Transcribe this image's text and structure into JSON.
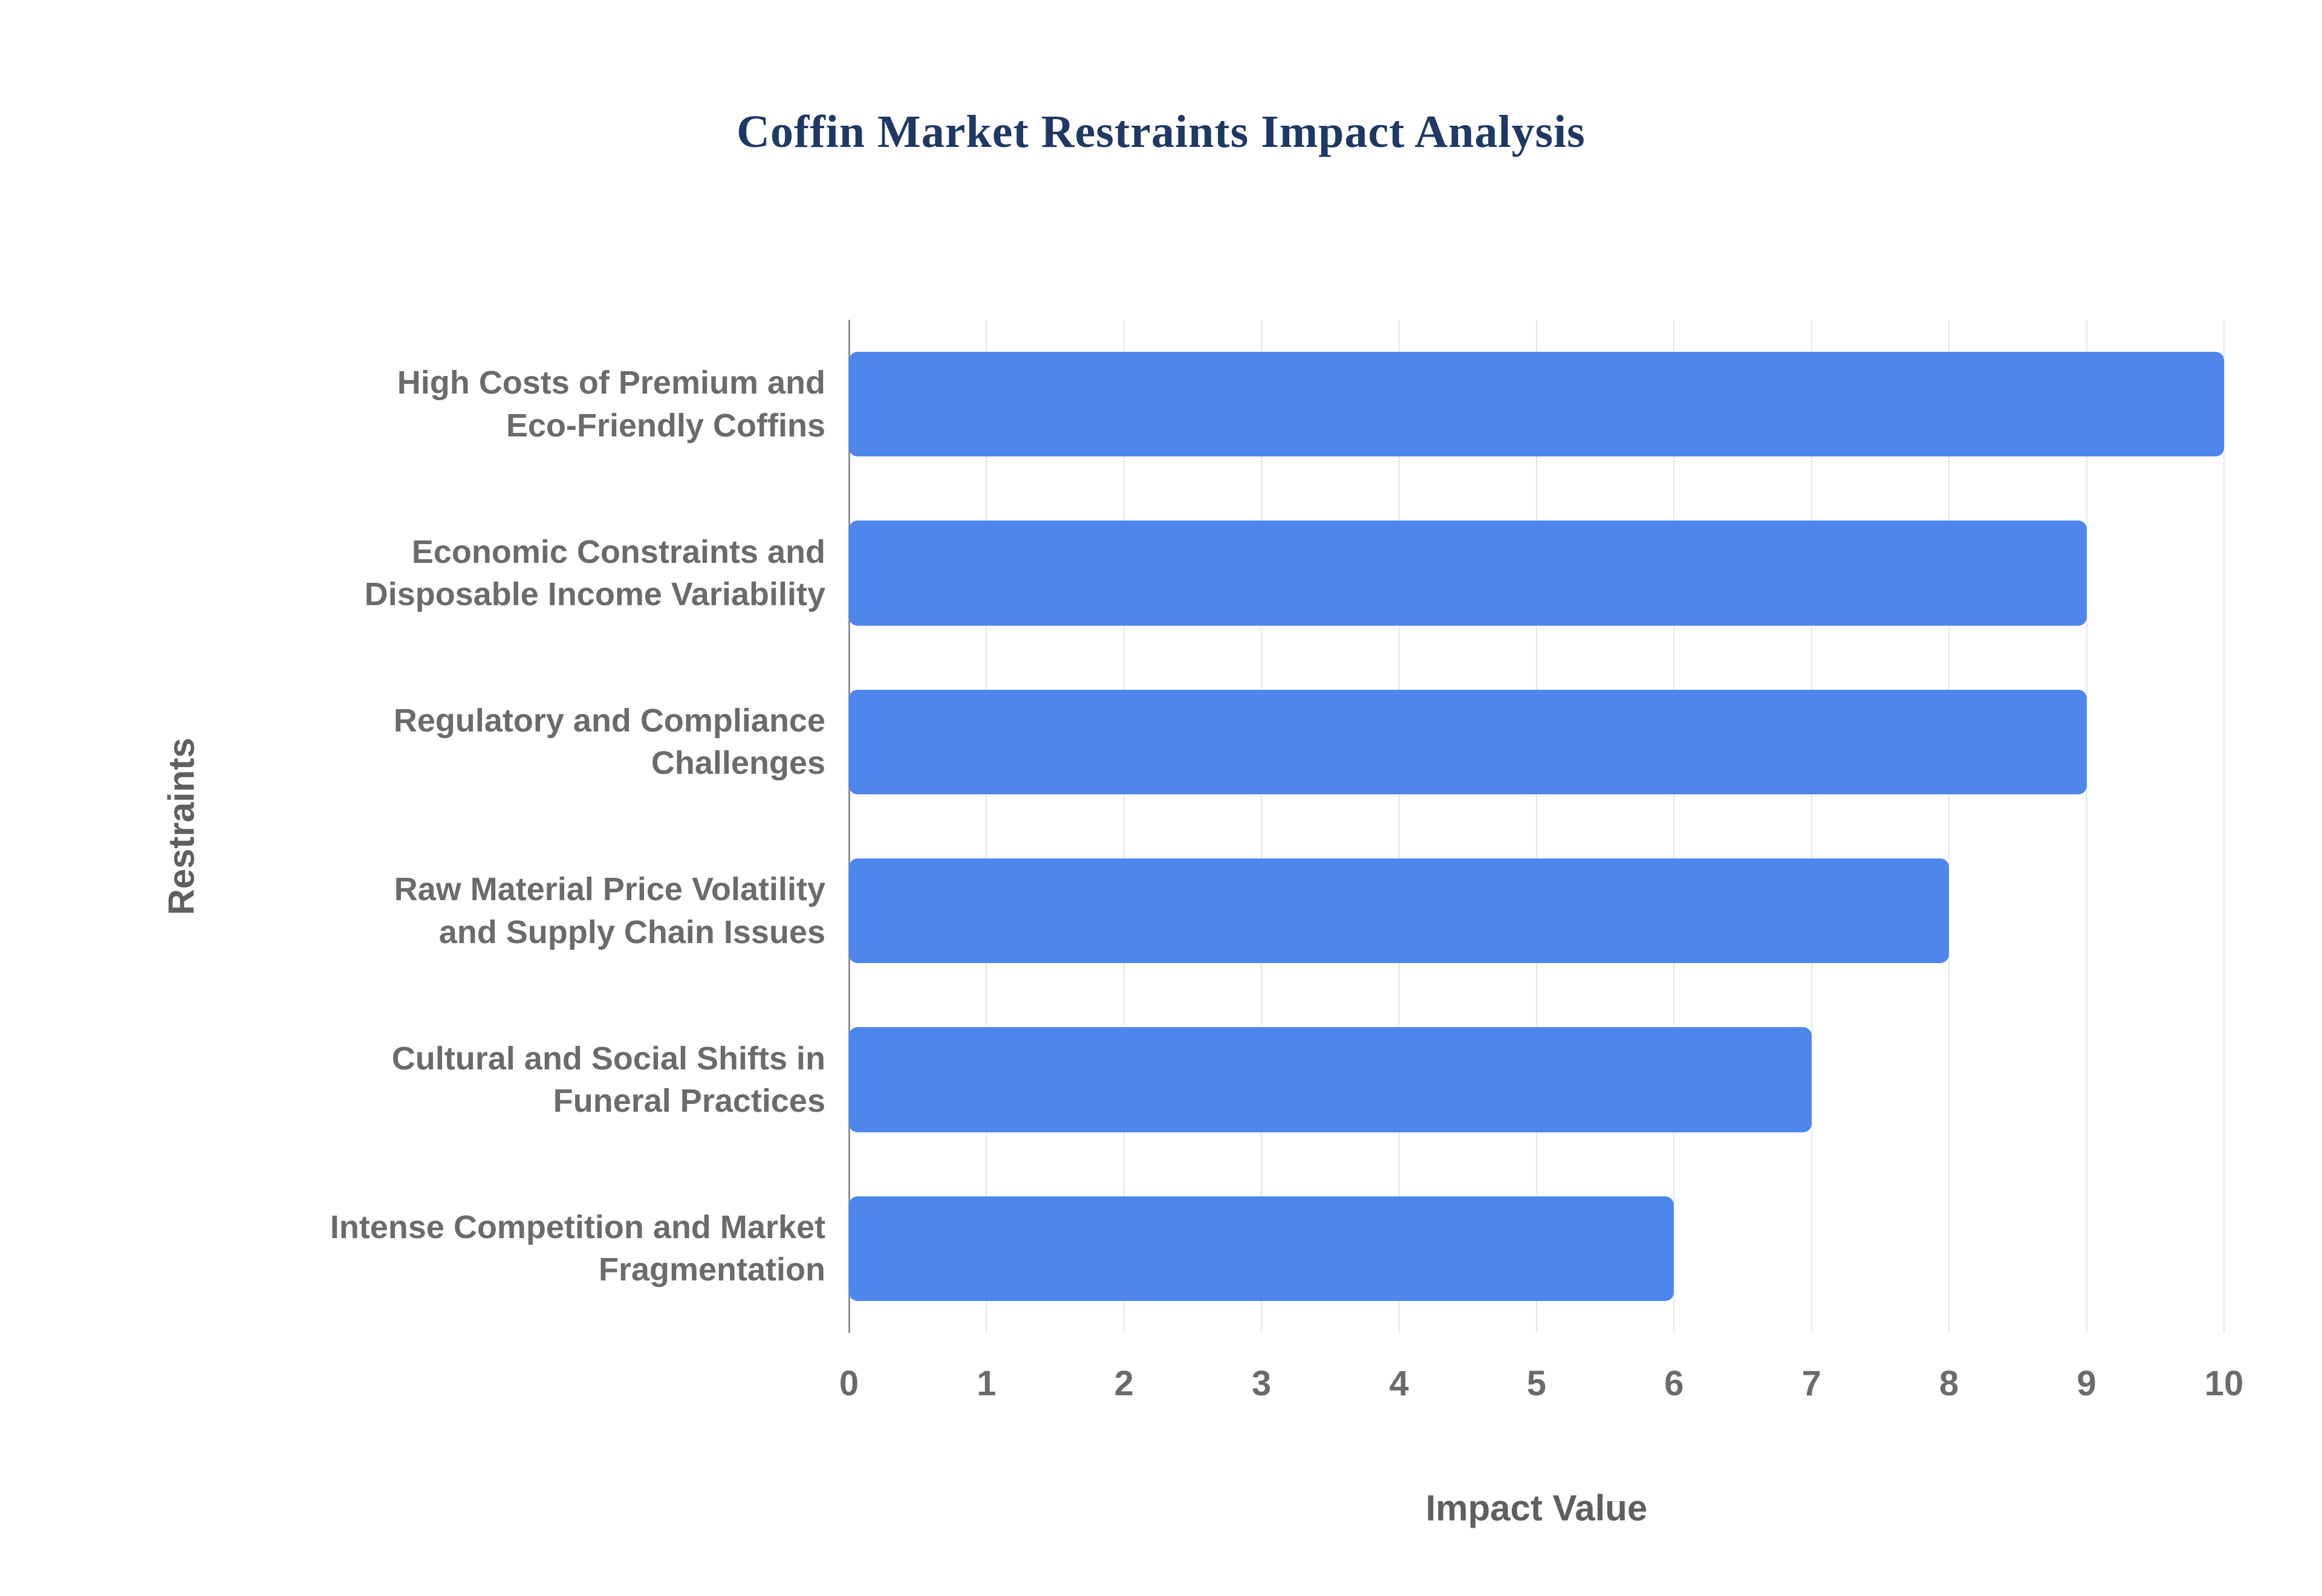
{
  "title": "Coffin Market Restraints Impact Analysis",
  "chart_data": {
    "type": "bar",
    "orientation": "horizontal",
    "title": "Coffin Market Restraints Impact Analysis",
    "categories": [
      "High Costs of Premium and\nEco-Friendly Coffins",
      "Economic Constraints and\nDisposable Income Variability",
      "Regulatory and Compliance\nChallenges",
      "Raw Material Price Volatility\nand Supply Chain Issues",
      "Cultural and Social Shifts in\nFuneral Practices",
      "Intense Competition and Market\nFragmentation"
    ],
    "values": [
      10,
      9,
      9,
      8,
      7,
      6
    ],
    "xlabel": "Impact Value",
    "ylabel": "Restraints",
    "xlim": [
      0,
      10
    ],
    "xticks": [
      0,
      1,
      2,
      3,
      4,
      5,
      6,
      7,
      8,
      9,
      10
    ],
    "grid": true,
    "legend": "none",
    "bar_color": "#4e86ec",
    "title_color": "#1f3864",
    "axis_text_color": "#6b6b6b"
  }
}
